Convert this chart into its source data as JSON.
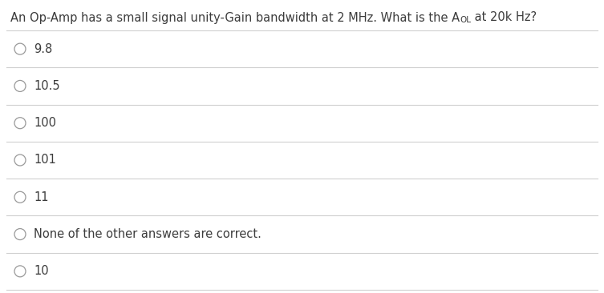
{
  "question_part1": "An Op-Amp has a small signal unity-Gain bandwidth at 2 MHz. What is the A",
  "question_sub": "OL",
  "question_part2": " at 20k Hz?",
  "options": [
    "9.8",
    "10.5",
    "100",
    "101",
    "11",
    "None of the other answers are correct.",
    "10"
  ],
  "bg_color": "#ffffff",
  "text_color": "#3c3c3c",
  "line_color": "#d0d0d0",
  "question_fontsize": 10.5,
  "option_fontsize": 10.5,
  "fig_width": 7.53,
  "fig_height": 3.66,
  "dpi": 100
}
